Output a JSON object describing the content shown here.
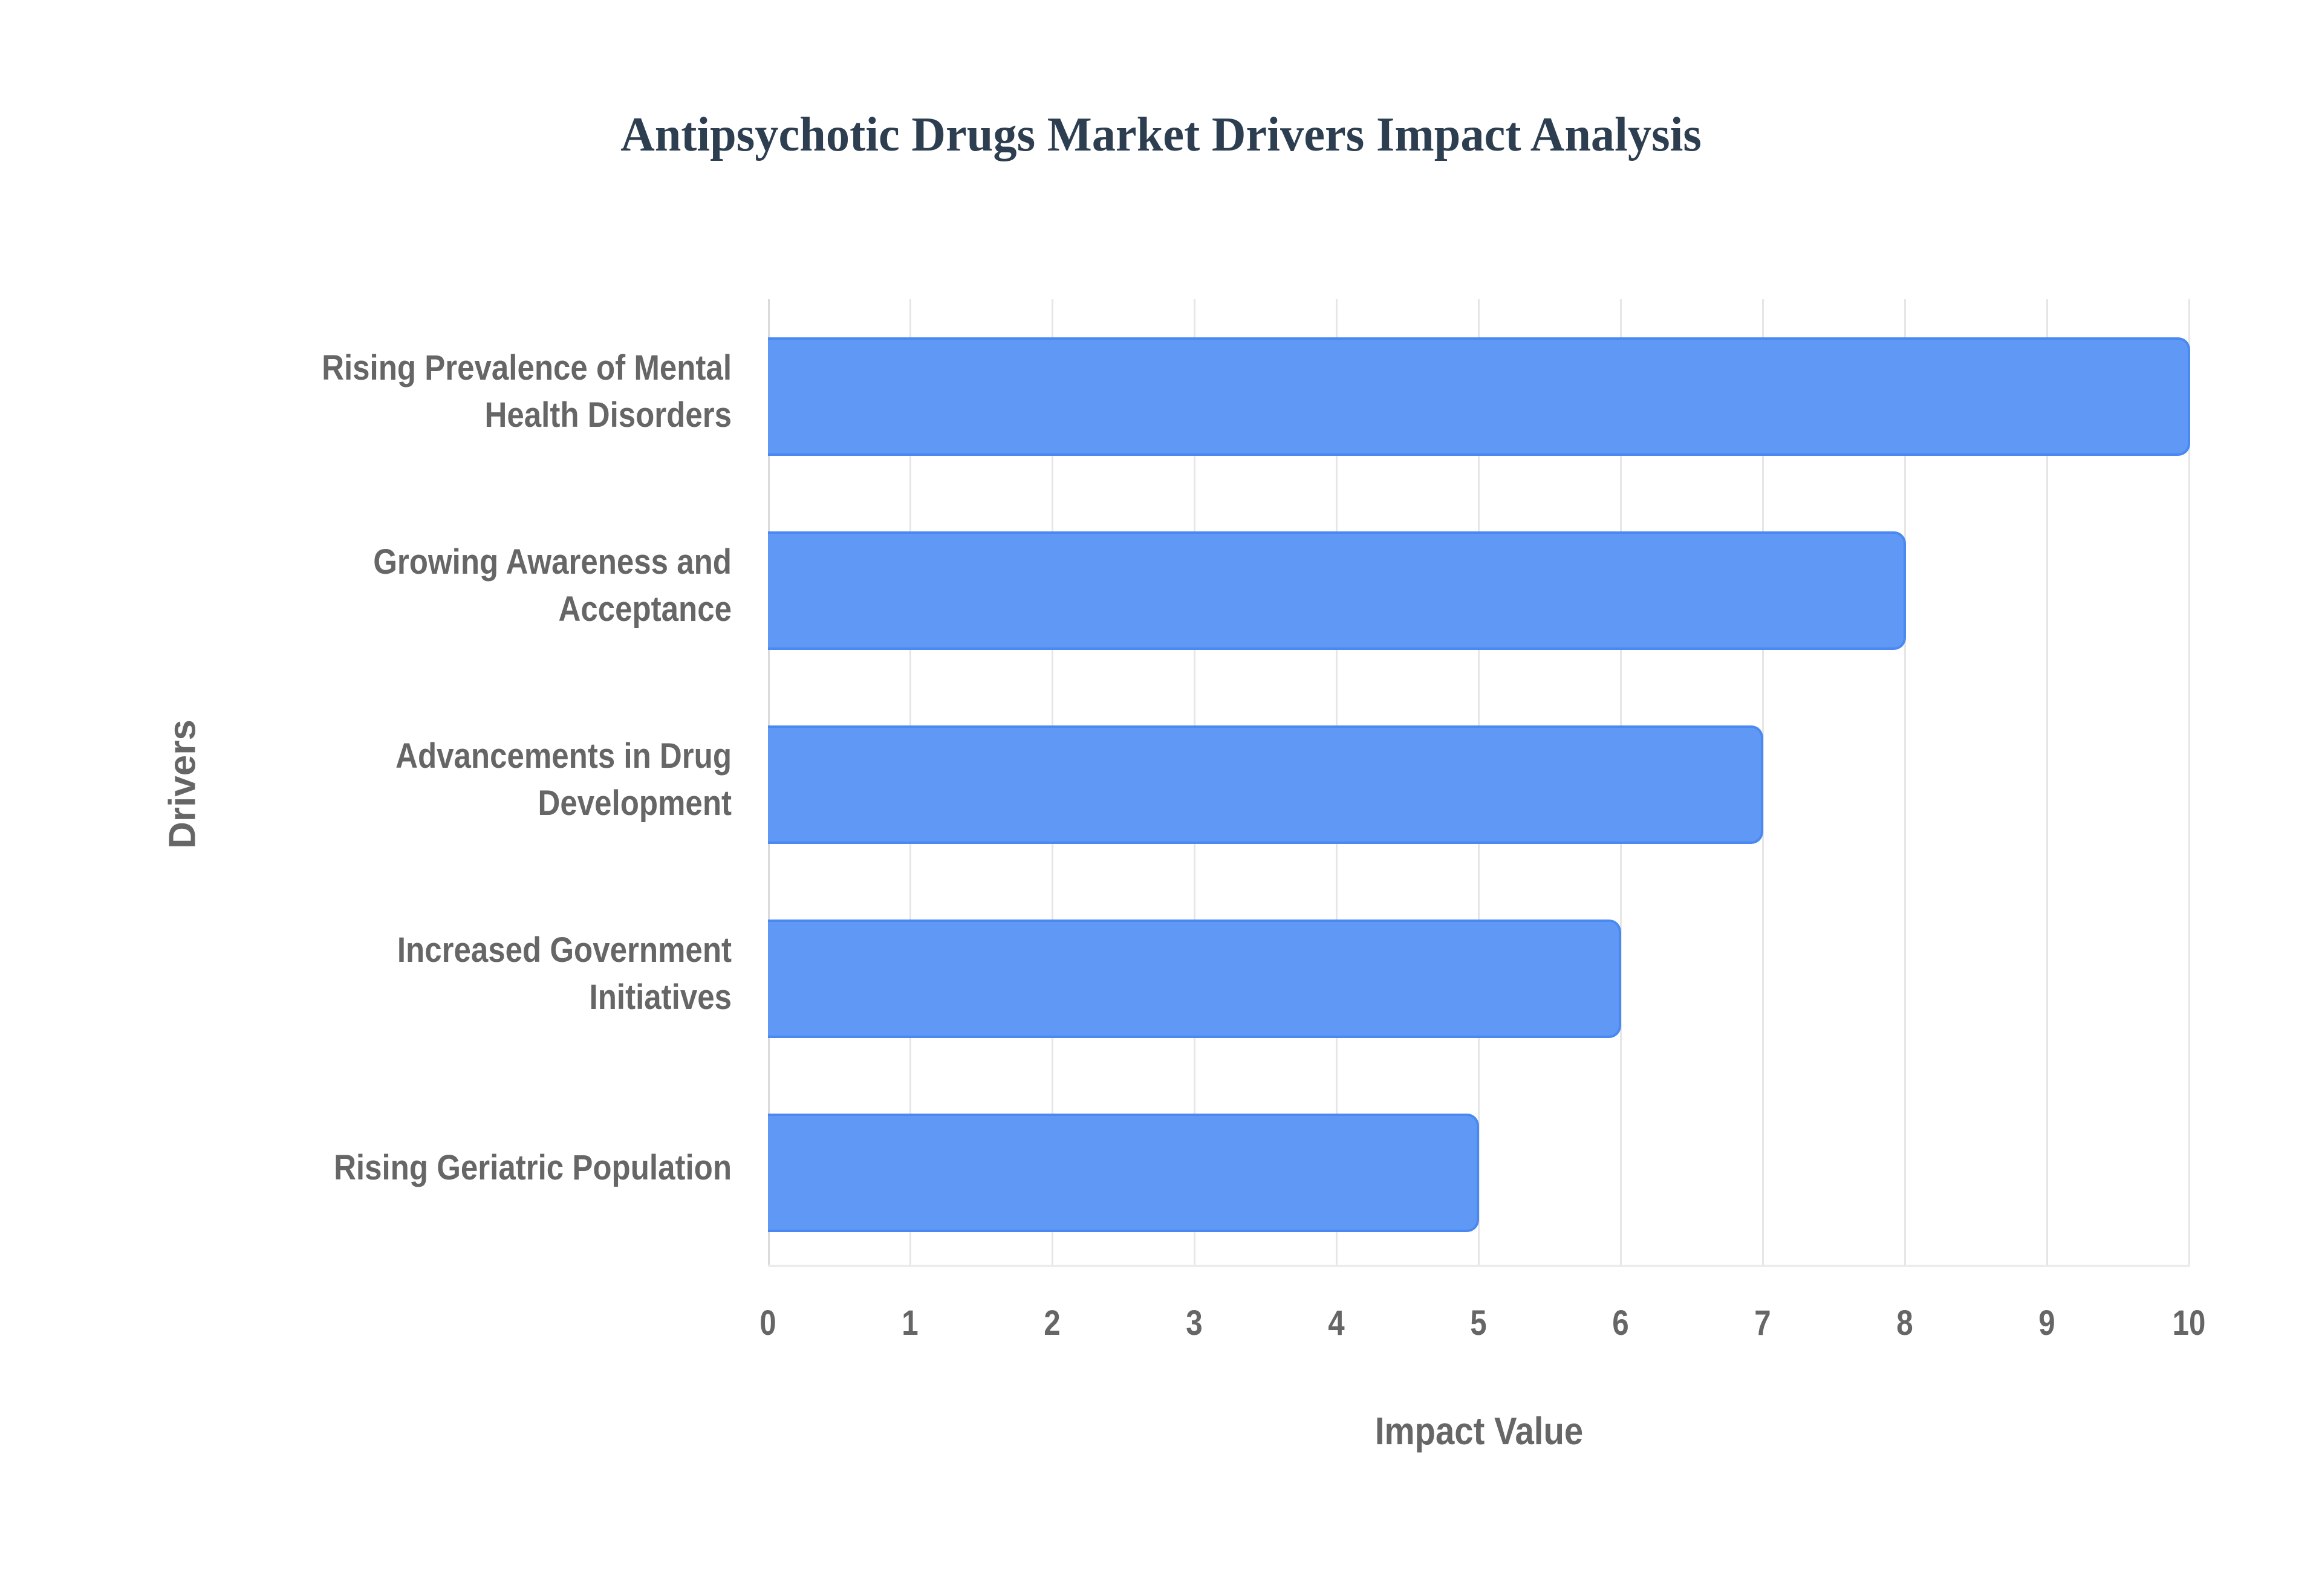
{
  "title": "Antipsychotic Drugs Market Drivers Impact Analysis",
  "colors": {
    "title": "#2c3e50",
    "bar_fill": "#5f98f5",
    "bar_border": "#4a88f2",
    "axis_text": "#666666",
    "gridline": "#e6e6e6"
  },
  "axes": {
    "x_title": "Impact Value",
    "y_title": "Drivers",
    "x_ticks": [
      "0",
      "1",
      "2",
      "3",
      "4",
      "5",
      "6",
      "7",
      "8",
      "9",
      "10"
    ]
  },
  "bars": [
    {
      "label_line1": "Rising Prevalence of Mental",
      "label_line2": "Health Disorders",
      "value": 10
    },
    {
      "label_line1": "Growing Awareness and",
      "label_line2": "Acceptance",
      "value": 8
    },
    {
      "label_line1": "Advancements in Drug",
      "label_line2": "Development",
      "value": 7
    },
    {
      "label_line1": "Increased Government",
      "label_line2": "Initiatives",
      "value": 6
    },
    {
      "label_line1": "Rising Geriatric Population",
      "label_line2": "",
      "value": 5
    }
  ],
  "chart_data": {
    "type": "bar",
    "orientation": "horizontal",
    "title": "Antipsychotic Drugs Market Drivers Impact Analysis",
    "categories": [
      "Rising Prevalence of Mental Health Disorders",
      "Growing Awareness and Acceptance",
      "Advancements in Drug Development",
      "Increased Government Initiatives",
      "Rising Geriatric Population"
    ],
    "values": [
      10,
      8,
      7,
      6,
      5
    ],
    "xlabel": "Impact Value",
    "ylabel": "Drivers",
    "xlim": [
      0,
      10
    ],
    "x_ticks": [
      0,
      1,
      2,
      3,
      4,
      5,
      6,
      7,
      8,
      9,
      10
    ],
    "grid": true,
    "legend": false
  }
}
